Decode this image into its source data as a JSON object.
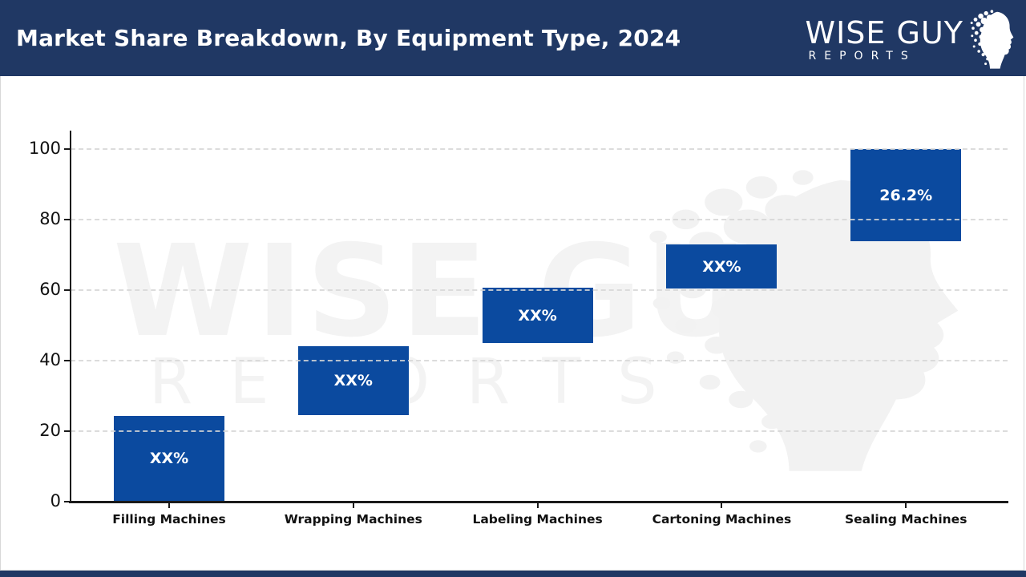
{
  "header": {
    "title": "Market Share Breakdown, By Equipment Type, 2024",
    "bg_color": "#203864",
    "logo": {
      "primary": "WISE GUY",
      "secondary": "REPORTS"
    }
  },
  "watermark": {
    "line1": "WISE GUY",
    "line2": "REPORTS"
  },
  "chart_data": {
    "type": "bar",
    "subtype": "floating-waterfall",
    "title": "Market Share Breakdown, By Equipment Type, 2024",
    "categories": [
      "Filling Machines",
      "Wrapping Machines",
      "Labeling Machines",
      "Cartoning Machines",
      "Sealing Machines"
    ],
    "segments": [
      {
        "category": "Filling Machines",
        "start": 0,
        "end": 24.4,
        "label": "XX%"
      },
      {
        "category": "Wrapping Machines",
        "start": 24.5,
        "end": 44.0,
        "label": "XX%"
      },
      {
        "category": "Labeling Machines",
        "start": 44.9,
        "end": 60.6,
        "label": "XX%"
      },
      {
        "category": "Cartoning Machines",
        "start": 60.4,
        "end": 73.0,
        "label": "XX%"
      },
      {
        "category": "Sealing Machines",
        "start": 73.8,
        "end": 100,
        "label": "26.2%"
      }
    ],
    "yticks": [
      0,
      20,
      40,
      60,
      80,
      100
    ],
    "ylim": [
      0,
      105
    ],
    "xlabel": "",
    "ylabel": "",
    "bar_color": "#0b4a9f",
    "bar_label_color": "#ffffff",
    "grid": {
      "horizontal": true,
      "style": "dashed",
      "color": "#d9d9d9"
    },
    "legend": null
  },
  "footer": {
    "bar_color": "#203864"
  }
}
